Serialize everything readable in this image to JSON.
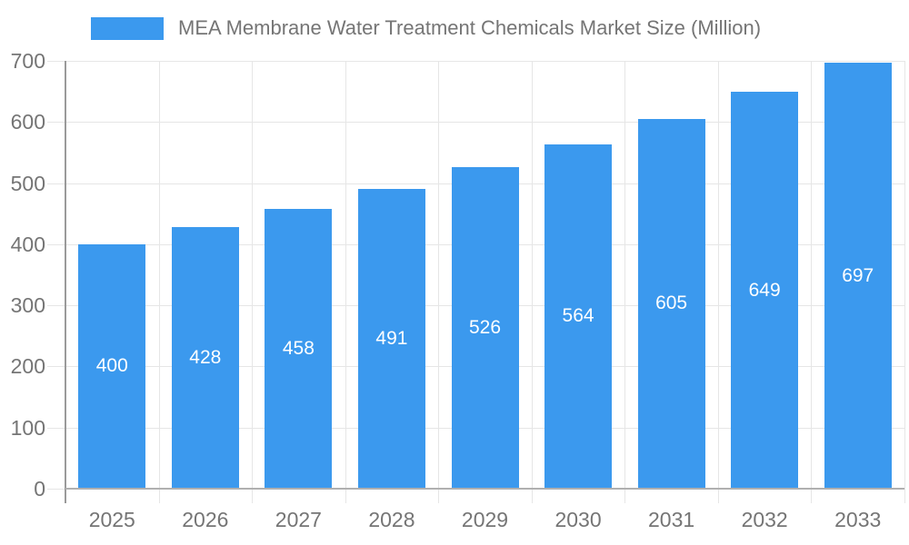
{
  "chart_data": {
    "type": "bar",
    "title": "MEA Membrane Water Treatment Chemicals Market Size (Million)",
    "categories": [
      "2025",
      "2026",
      "2027",
      "2028",
      "2029",
      "2030",
      "2031",
      "2032",
      "2033"
    ],
    "values": [
      400,
      428,
      458,
      491,
      526,
      564,
      605,
      649,
      697
    ],
    "xlabel": "",
    "ylabel": "",
    "ylim": [
      0,
      700
    ],
    "yticks": [
      0,
      100,
      200,
      300,
      400,
      500,
      600,
      700
    ],
    "grid": true,
    "legend_position": "top",
    "bar_labels_inside": true,
    "colors": {
      "bar": "#3b99ee",
      "bar_label": "#ffffff",
      "text": "#757575",
      "gridline": "#e6e6e6",
      "axis": "#b0b0b0"
    }
  }
}
